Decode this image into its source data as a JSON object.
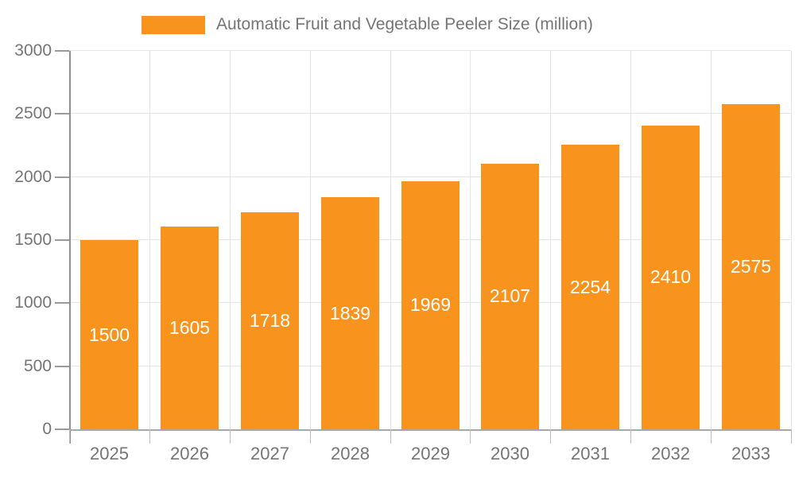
{
  "legend": {
    "label": "Automatic Fruit and Vegetable Peeler Size (million)",
    "swatch_color": "#F8941E"
  },
  "chart_data": {
    "type": "bar",
    "title": "",
    "xlabel": "",
    "ylabel": "",
    "categories": [
      "2025",
      "2026",
      "2027",
      "2028",
      "2029",
      "2030",
      "2031",
      "2032",
      "2033"
    ],
    "values": [
      1500,
      1605,
      1718,
      1839,
      1969,
      2107,
      2254,
      2410,
      2575
    ],
    "series_name": "Automatic Fruit and Vegetable Peeler Size (million)",
    "ylim": [
      0,
      3000
    ],
    "ytick_step": 500,
    "ytick_labels": [
      "0",
      "500",
      "1000",
      "1500",
      "2000",
      "2500",
      "3000"
    ],
    "grid": true,
    "legend_position": "top",
    "bar_color": "#F8941E",
    "value_label_color": "#FFFFFF",
    "axis_text_color": "#757575",
    "gridline_color": "#E5E5E5"
  }
}
